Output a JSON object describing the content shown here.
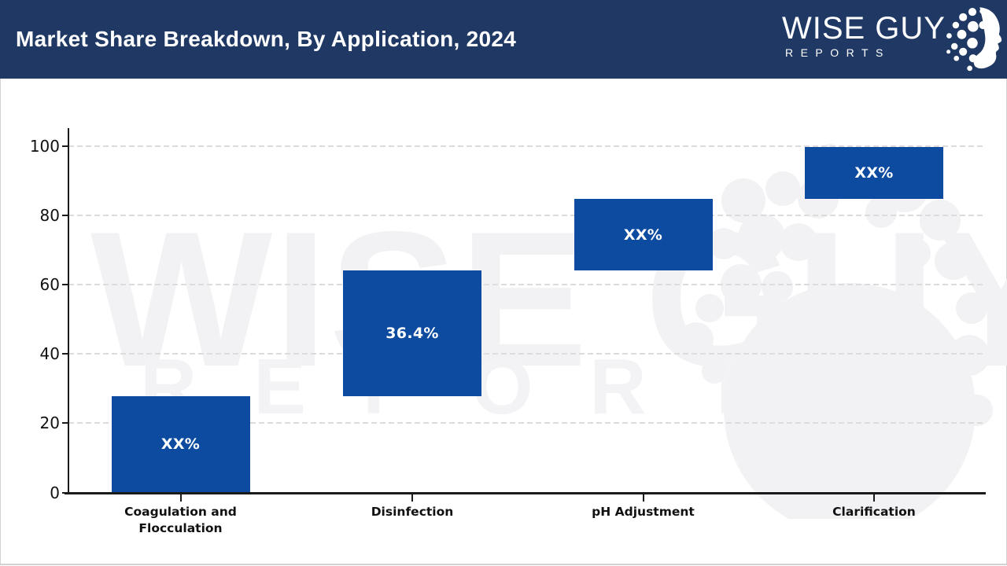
{
  "header": {
    "title": "Market Share Breakdown, By Application, 2024",
    "bg_color": "#1F3864",
    "logo": {
      "line1": "WISE GUY",
      "line2": "REPORTS"
    }
  },
  "watermark": {
    "line1": "WISE GUY",
    "line2": "REPORTS"
  },
  "chart_data": {
    "type": "bar",
    "variant": "floating-segment-waterfall",
    "title": "Market Share Breakdown, By Application, 2024",
    "categories": [
      "Coagulation and Flocculation",
      "Disinfection",
      "pH Adjustment",
      "Clarification"
    ],
    "segments": [
      {
        "category": "Coagulation and Flocculation",
        "start": 0,
        "end": 27.7,
        "label": "XX%"
      },
      {
        "category": "Disinfection",
        "start": 27.7,
        "end": 64.1,
        "label": "36.4%"
      },
      {
        "category": "pH Adjustment",
        "start": 64.1,
        "end": 84.8,
        "label": "XX%"
      },
      {
        "category": "Clarification",
        "start": 84.8,
        "end": 99.8,
        "label": "XX%"
      }
    ],
    "ylim": [
      0,
      100
    ],
    "yticks": [
      0,
      20,
      40,
      60,
      80,
      100
    ],
    "xlabel": "",
    "ylabel": "",
    "grid": "horizontal-dashed",
    "legend": "none",
    "bar_color": "#0C4BA0",
    "bar_label_color": "#FFFFFF",
    "axis_color": "#1a1a1a"
  }
}
